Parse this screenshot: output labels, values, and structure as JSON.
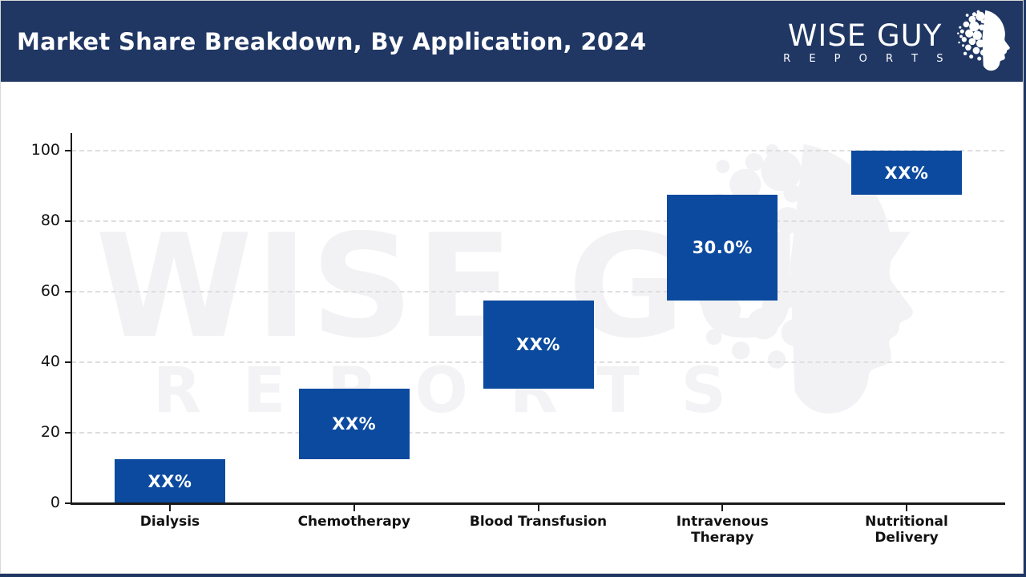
{
  "header": {
    "title": "Market Share Breakdown, By Application, 2024",
    "logo": {
      "primary": "WISE GUY",
      "secondary": "REPORTS"
    }
  },
  "watermark": {
    "line1": "WISE GUY",
    "line2": "REPORTS"
  },
  "chart_data": {
    "type": "bar",
    "variant": "waterfall",
    "title": "Market Share Breakdown, By Application, 2024",
    "xlabel": "",
    "ylabel": "",
    "ylim": [
      0,
      105
    ],
    "yticks": [
      0,
      20,
      40,
      60,
      80,
      100
    ],
    "grid": "horizontal-dashed",
    "legend": "none",
    "categories": [
      "Dialysis",
      "Chemotherapy",
      "Blood Transfusion",
      "Intravenous Therapy",
      "Nutritional Delivery"
    ],
    "category_label_lines": [
      [
        "Dialysis"
      ],
      [
        "Chemotherapy"
      ],
      [
        "Blood Transfusion"
      ],
      [
        "Intravenous",
        "Therapy"
      ],
      [
        "Nutritional",
        "Delivery"
      ]
    ],
    "segments": [
      {
        "category": "Dialysis",
        "start": 0,
        "end": 12.5,
        "label": "XX%"
      },
      {
        "category": "Chemotherapy",
        "start": 12.5,
        "end": 32.5,
        "label": "XX%"
      },
      {
        "category": "Blood Transfusion",
        "start": 32.5,
        "end": 57.5,
        "label": "XX%"
      },
      {
        "category": "Intravenous Therapy",
        "start": 57.5,
        "end": 87.5,
        "label": "30.0%"
      },
      {
        "category": "Nutritional Delivery",
        "start": 87.5,
        "end": 100,
        "label": "XX%"
      }
    ]
  },
  "colors": {
    "header_bg": "#203764",
    "bar": "#0b4a9e",
    "grid": "#dedede",
    "axis": "#1a1a1a",
    "watermark": "#f2f2f4",
    "card_border": "#d9d9d9"
  }
}
